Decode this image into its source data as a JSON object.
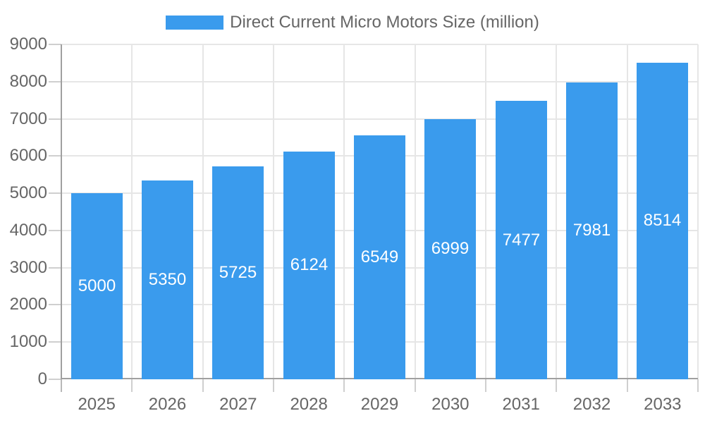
{
  "chart": {
    "legend": {
      "label": "Direct Current Micro Motors Size (million)"
    }
  },
  "colors": {
    "bar": "#3A9BED",
    "grid": "#E6E6E6",
    "tick": "#CFCFCF",
    "zero_tick": "#B8B8B8",
    "axis": "#A0A0A0",
    "tick_text": "#666666",
    "value_text": "#FFFFFF",
    "background": "#FFFFFF"
  },
  "chart_data": {
    "type": "bar",
    "title": "Direct Current Micro Motors Size (million)",
    "categories": [
      "2025",
      "2026",
      "2027",
      "2028",
      "2029",
      "2030",
      "2031",
      "2032",
      "2033"
    ],
    "series": [
      {
        "name": "Direct Current Micro Motors Size (million)",
        "values": [
          5000,
          5350,
          5725,
          6124,
          6549,
          6999,
          7477,
          7981,
          8514
        ]
      }
    ],
    "values": [
      5000,
      5350,
      5725,
      6124,
      6549,
      6999,
      7477,
      7981,
      8514
    ],
    "xlabel": "",
    "ylabel": "",
    "ylim": [
      0,
      9000
    ],
    "ytick_step": 1000,
    "grid": true,
    "legend_position": "top",
    "value_label_position": "inside-center"
  }
}
